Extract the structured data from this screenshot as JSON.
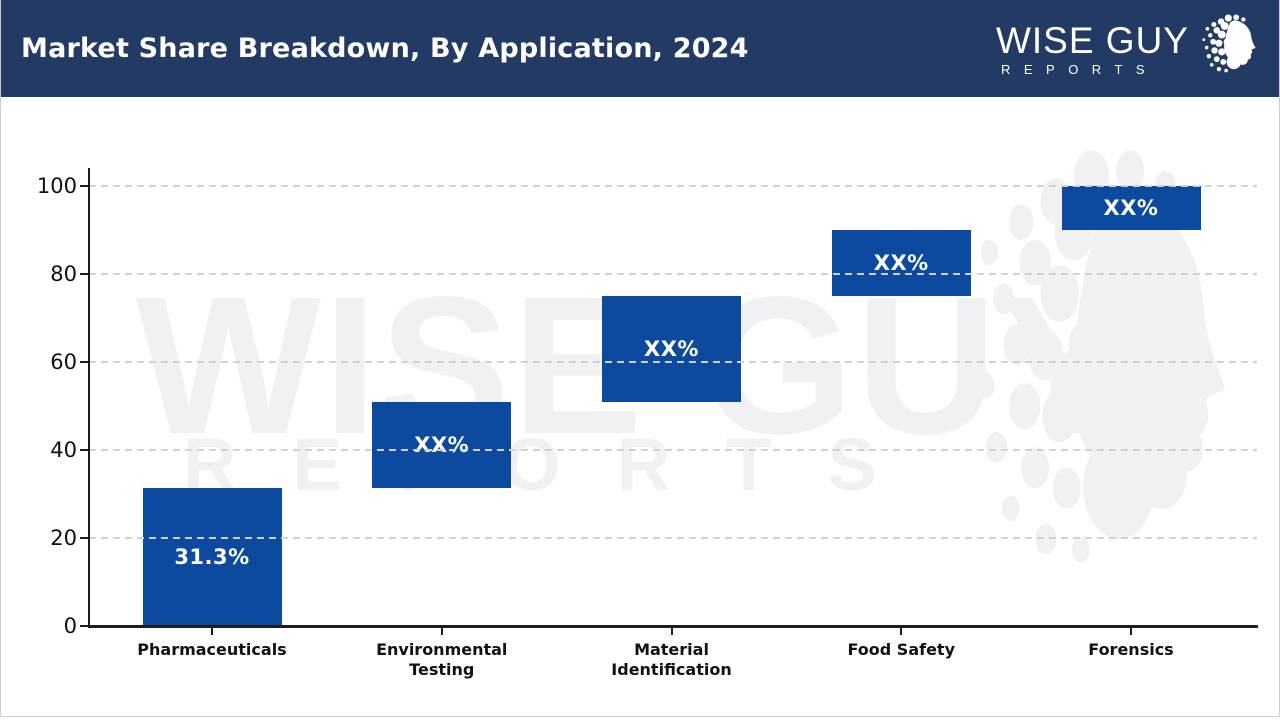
{
  "header": {
    "title": "Market Share Breakdown, By Application, 2024",
    "logo": {
      "title": "WISE GUY",
      "subtitle": "REPORTS"
    }
  },
  "watermark": {
    "title": "WISE GUY",
    "subtitle": "REPORTS"
  },
  "colors": {
    "header_bg": "#223a64",
    "bar_blue": "#0b4a9e",
    "grid_gray": "#cfd2d6",
    "axis_black": "#1c1c1c",
    "watermark_gray": "#f1f1f3",
    "text_black": "#111111",
    "bar_label_white": "#ffffff",
    "card_border": "#c9ccd1"
  },
  "chart_data": {
    "type": "bar",
    "subtype": "waterfall",
    "title": "Market Share Breakdown, By Application, 2024",
    "categories": [
      "Pharmaceuticals",
      "Environmental\nTesting",
      "Material\nIdentification",
      "Food Safety",
      "Forensics"
    ],
    "segments": [
      {
        "category": "Pharmaceuticals",
        "start": 0,
        "end": 31.3,
        "value_label": "31.3%"
      },
      {
        "category": "Environmental Testing",
        "start": 31.3,
        "end": 51,
        "value_label": "XX%"
      },
      {
        "category": "Material Identification",
        "start": 51,
        "end": 75,
        "value_label": "XX%"
      },
      {
        "category": "Food Safety",
        "start": 75,
        "end": 90,
        "value_label": "XX%"
      },
      {
        "category": "Forensics",
        "start": 90,
        "end": 100,
        "value_label": "XX%"
      }
    ],
    "yticks": [
      0,
      20,
      40,
      60,
      80,
      100
    ],
    "ylim": [
      0,
      104
    ],
    "xlabel": "",
    "ylabel": "",
    "grid": "horizontal-dashed",
    "legend": "none",
    "bar_color": "#0b4a9e"
  }
}
